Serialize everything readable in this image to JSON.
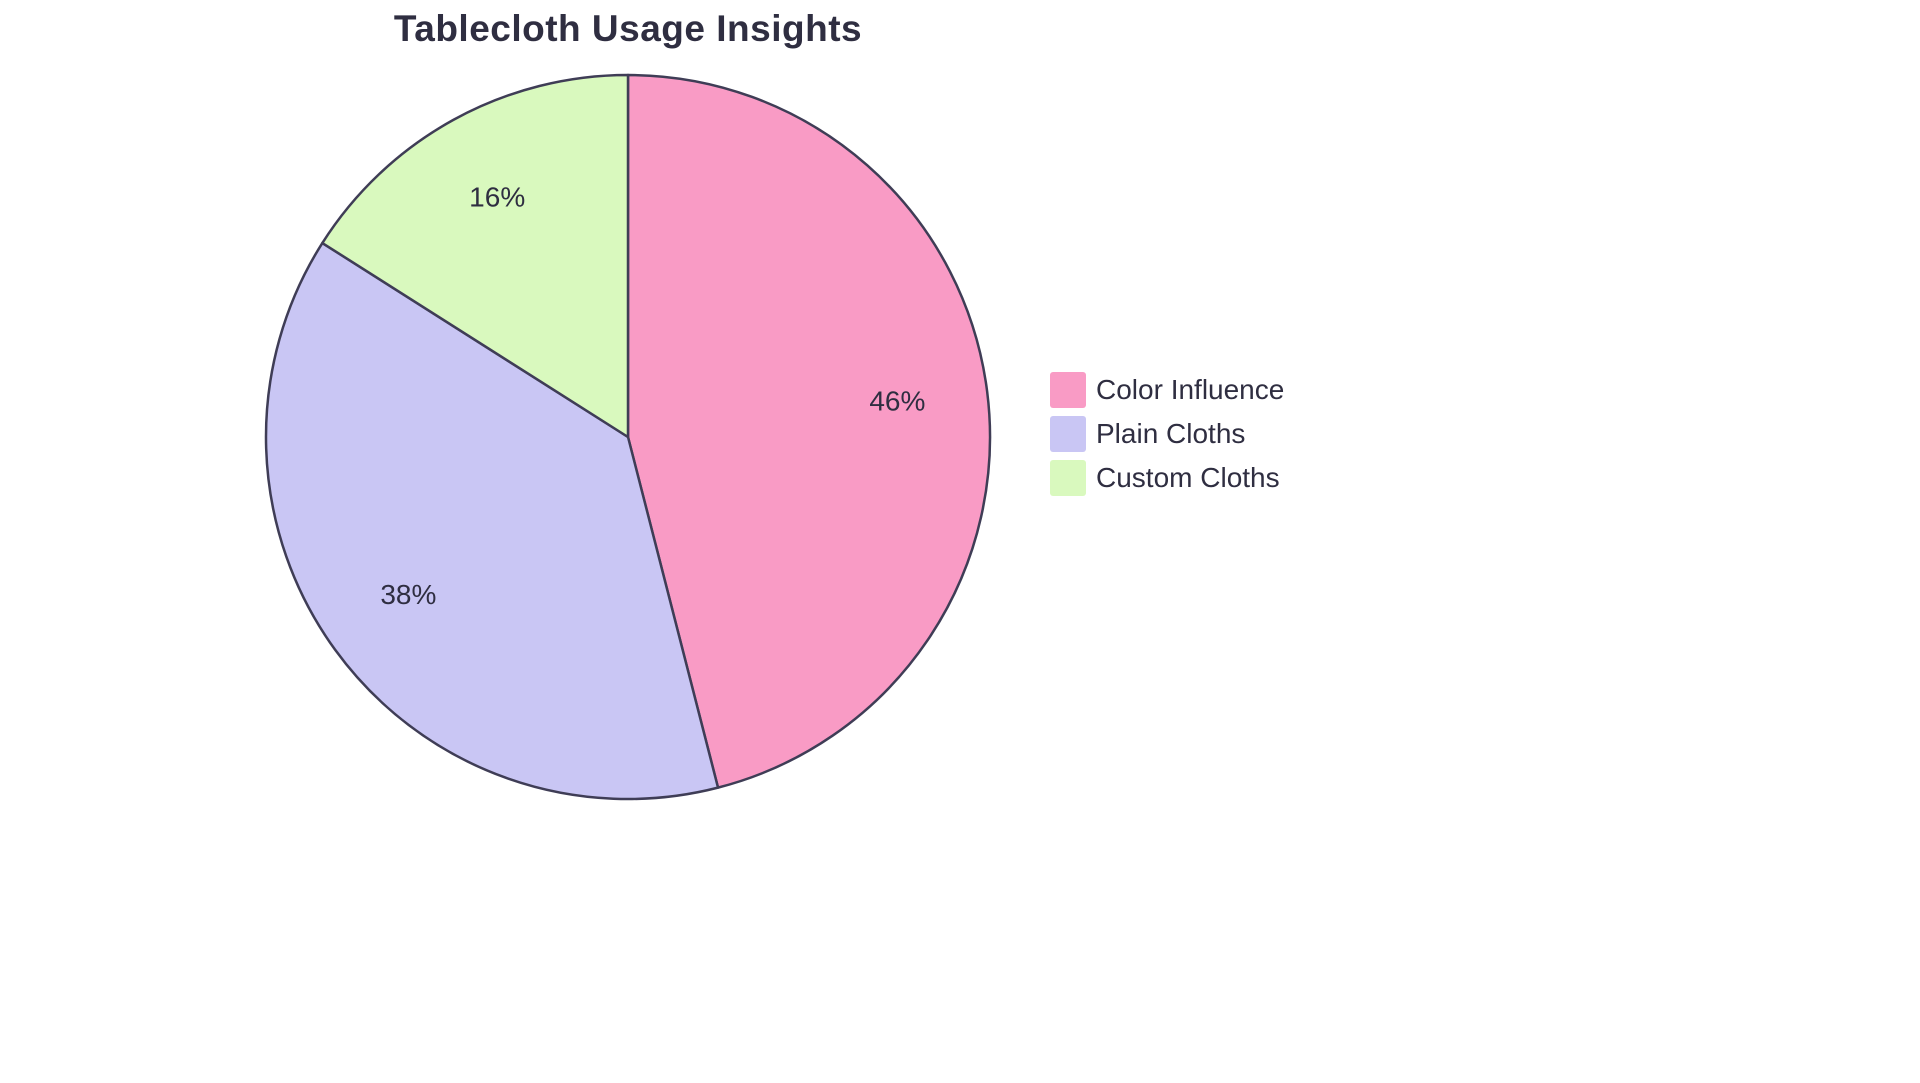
{
  "chart_data": {
    "type": "pie",
    "title": "Tablecloth Usage Insights",
    "labels": [
      "Color Influence",
      "Plain Cloths",
      "Custom Cloths"
    ],
    "values": [
      46,
      38,
      16
    ],
    "percent_labels": [
      "46%",
      "38%",
      "16%"
    ],
    "colors": [
      "#F99BC5",
      "#C9C6F4",
      "#D9F9BE"
    ],
    "outline_color": "#3F3D56",
    "text_color": "#2F2E41",
    "start_angle_deg": -90,
    "direction": "clockwise",
    "legend_position": "right",
    "grid": false
  },
  "legend": {
    "items": [
      {
        "label": "Color Influence",
        "color": "#F99BC5"
      },
      {
        "label": "Plain Cloths",
        "color": "#C9C6F4"
      },
      {
        "label": "Custom Cloths",
        "color": "#D9F9BE"
      }
    ]
  }
}
